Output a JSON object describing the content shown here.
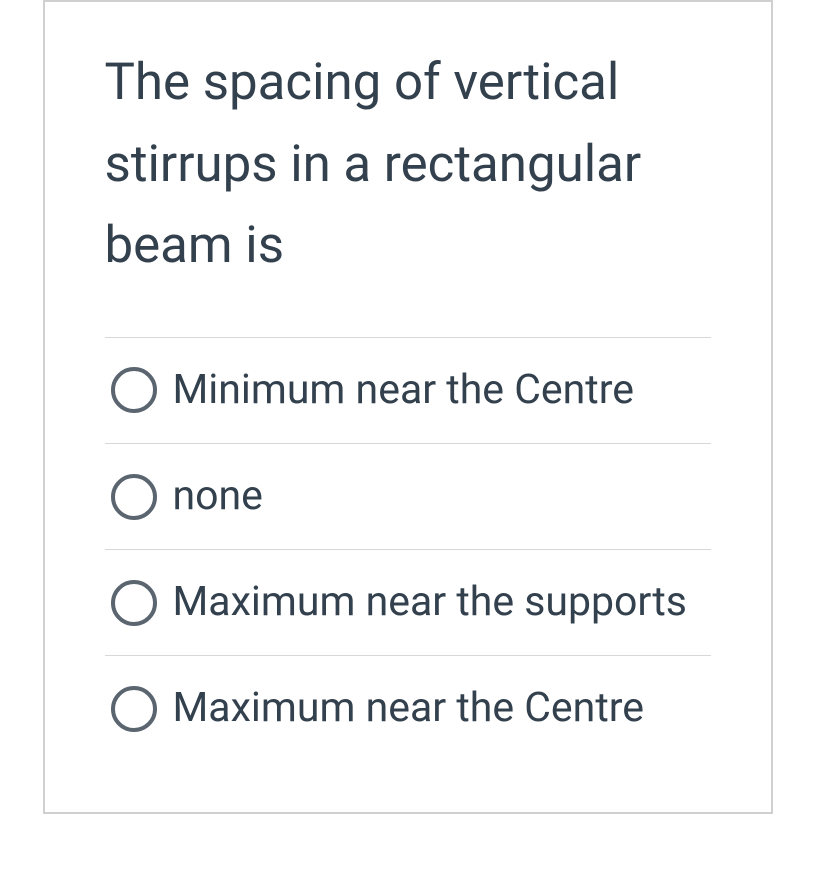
{
  "question": {
    "text": "The spacing of vertical stirrups in a rectangular beam is",
    "options": [
      {
        "label": "Minimum near the Centre"
      },
      {
        "label": "none"
      },
      {
        "label": "Maximum near the supports"
      },
      {
        "label": "Maximum near the Centre"
      }
    ]
  },
  "colors": {
    "text": "#33404d",
    "border": "#d0d0d0",
    "divider": "#d8d8d8",
    "radio_border": "#5a6570",
    "background": "#ffffff"
  }
}
